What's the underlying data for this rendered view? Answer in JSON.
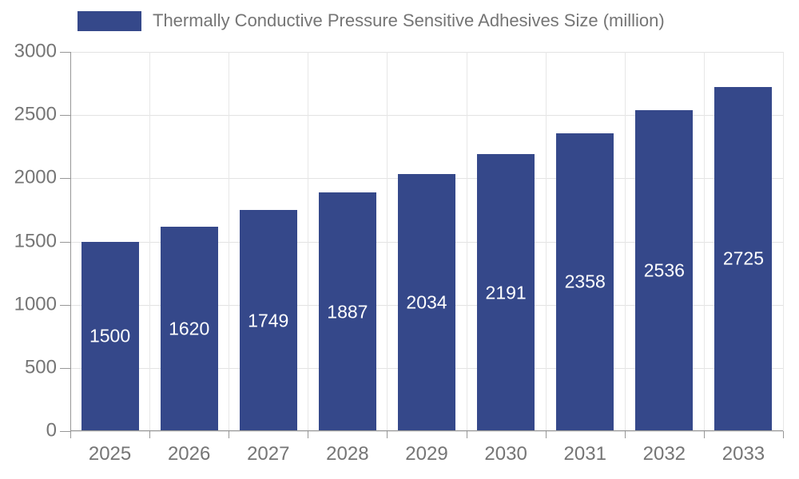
{
  "legend": {
    "label": "Thermally Conductive Pressure Sensitive Adhesives Size (million)"
  },
  "chart_data": {
    "type": "bar",
    "title": "Thermally Conductive Pressure Sensitive Adhesives Size (million)",
    "categories": [
      "2025",
      "2026",
      "2027",
      "2028",
      "2029",
      "2030",
      "2031",
      "2032",
      "2033"
    ],
    "values": [
      1500,
      1620,
      1749,
      1887,
      2034,
      2191,
      2358,
      2536,
      2725
    ],
    "xlabel": "",
    "ylabel": "",
    "ylim": [
      0,
      3000
    ],
    "y_ticks": [
      0,
      500,
      1000,
      1500,
      2000,
      2500,
      3000
    ],
    "grid": true,
    "legend_position": "top-left",
    "colors": {
      "bar": "#35488a",
      "value_label": "#ffffff",
      "axis_text": "#757575",
      "grid_line": "#e3e3e3",
      "axis_line": "#979797",
      "background": "#ffffff"
    }
  }
}
